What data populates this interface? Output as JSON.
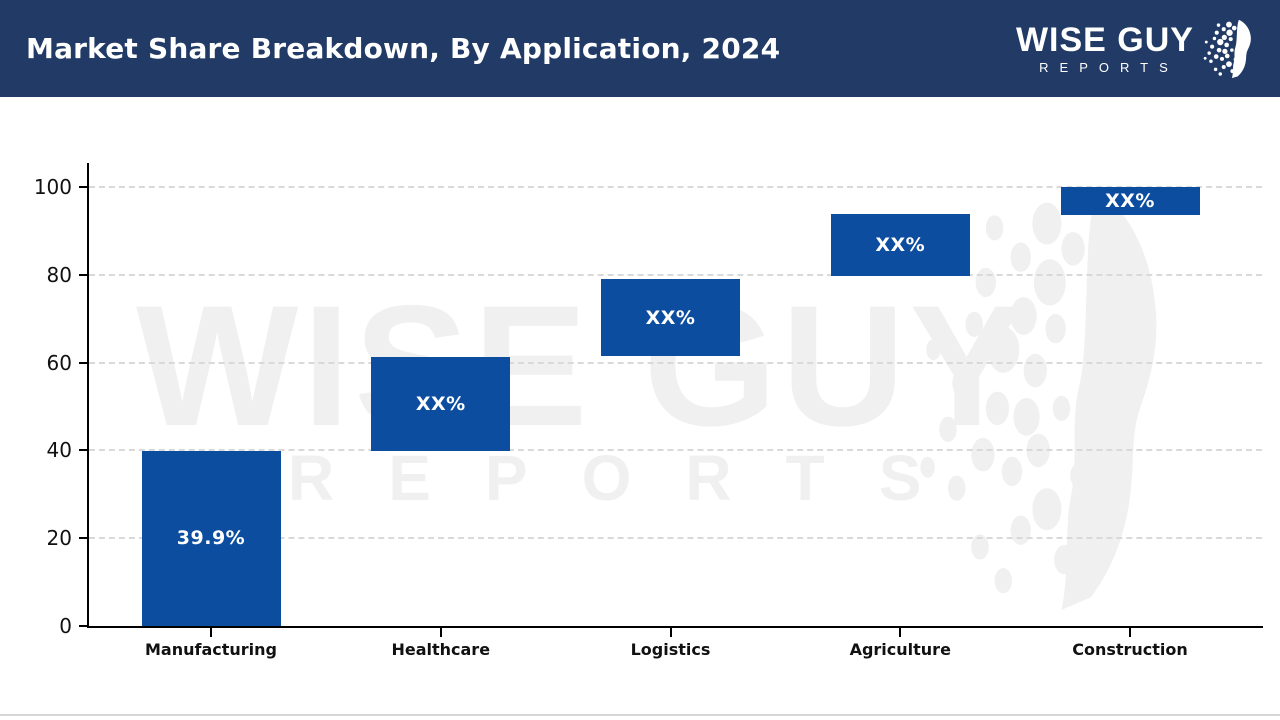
{
  "header": {
    "title": "Market Share Breakdown, By Application, 2024",
    "logo": {
      "line1": "WISE GUY",
      "line2": "REPORTS"
    }
  },
  "watermark": {
    "line1": "WISE GUY",
    "line2": "REPORTS"
  },
  "chart_data": {
    "type": "bar",
    "subtype": "waterfall",
    "title": "Market Share Breakdown, By Application, 2024",
    "categories": [
      "Manufacturing",
      "Healthcare",
      "Logistics",
      "Agriculture",
      "Construction"
    ],
    "segments": [
      {
        "category": "Manufacturing",
        "start": 0,
        "end": 39.9,
        "label": "39.9%"
      },
      {
        "category": "Healthcare",
        "start": 39.9,
        "end": 61.3,
        "label": "XX%"
      },
      {
        "category": "Logistics",
        "start": 61.5,
        "end": 79.0,
        "label": "XX%"
      },
      {
        "category": "Agriculture",
        "start": 79.8,
        "end": 93.8,
        "label": "XX%"
      },
      {
        "category": "Construction",
        "start": 93.7,
        "end": 100.0,
        "label": "XX%"
      }
    ],
    "xlabel": "",
    "ylabel": "",
    "ylim": [
      0,
      104
    ],
    "yticks": [
      0,
      20,
      40,
      60,
      80,
      100
    ],
    "grid": "horizontal-dashed",
    "legend": "none"
  },
  "colors": {
    "header_bg": "#213a66",
    "bar": "#0c4da0",
    "grid": "#d9d9d9",
    "watermark": "#f0f0f0",
    "value_label": "#ffffff",
    "axis": "#000000",
    "footer_line": "#d6d6d6"
  }
}
